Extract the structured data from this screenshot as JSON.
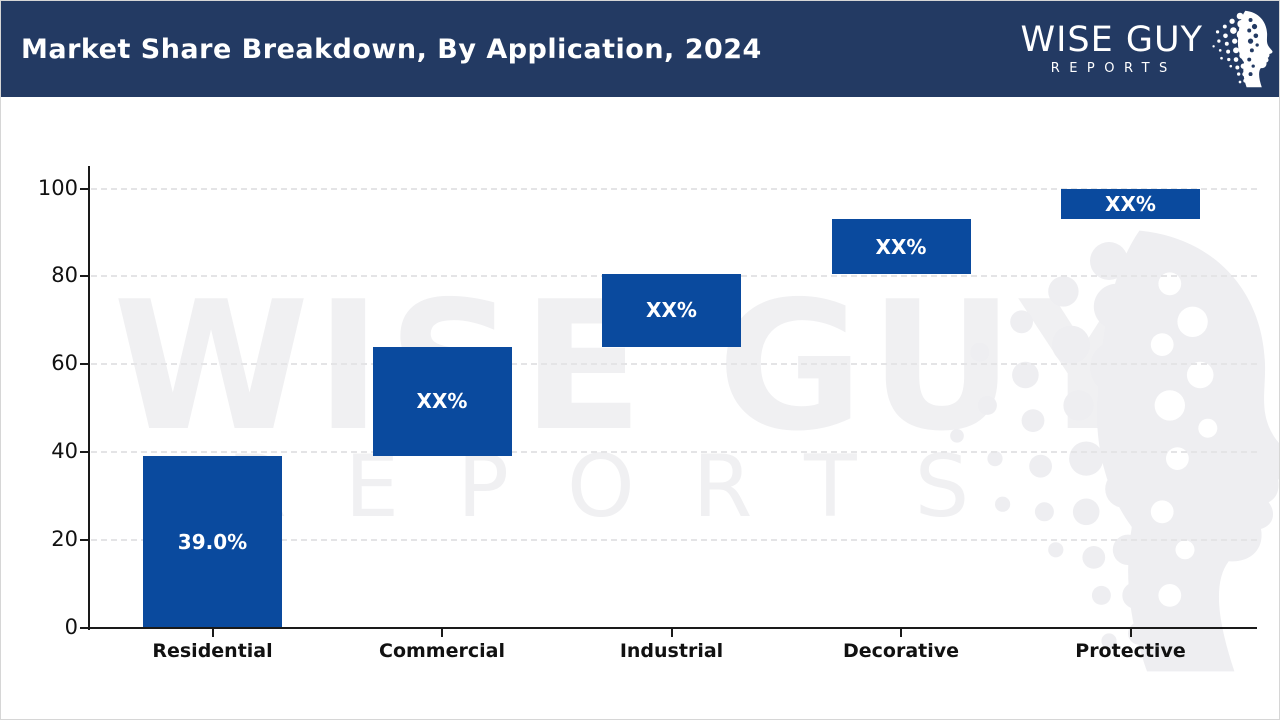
{
  "header": {
    "title": "Market Share Breakdown, By Application, 2024",
    "logo": {
      "line1": "WISE GUY",
      "line2": "REPORTS"
    }
  },
  "watermark": {
    "line1": "WISE GUY",
    "line2": "REPORTS"
  },
  "colors": {
    "header_bg": "#233a63",
    "bar": "#0a4a9e",
    "bar_label": "#ffffff",
    "axis": "#1a1a1a",
    "grid": "#e4e4e6",
    "watermark": "#f0f0f2",
    "watermark_head": "#eeeef1"
  },
  "chart_data": {
    "type": "bar",
    "variant": "waterfall",
    "title": "Market Share Breakdown, By Application, 2024",
    "xlabel": "",
    "ylabel": "",
    "categories": [
      "Residential",
      "Commercial",
      "Industrial",
      "Decorative",
      "Protective"
    ],
    "values": [
      39.0,
      25.0,
      16.5,
      12.5,
      7.0
    ],
    "segments": [
      {
        "category": "Residential",
        "start": 0,
        "end": 39,
        "label": "39.0%"
      },
      {
        "category": "Commercial",
        "start": 39,
        "end": 64,
        "label": "XX%"
      },
      {
        "category": "Industrial",
        "start": 64,
        "end": 80.5,
        "label": "XX%"
      },
      {
        "category": "Decorative",
        "start": 80.5,
        "end": 93,
        "label": "XX%"
      },
      {
        "category": "Protective",
        "start": 93,
        "end": 100,
        "label": "XX%"
      }
    ],
    "yticks": [
      0,
      20,
      40,
      60,
      80,
      100
    ],
    "ylim": [
      0,
      105
    ],
    "grid": "horizontal-dashed",
    "legend": "none"
  }
}
